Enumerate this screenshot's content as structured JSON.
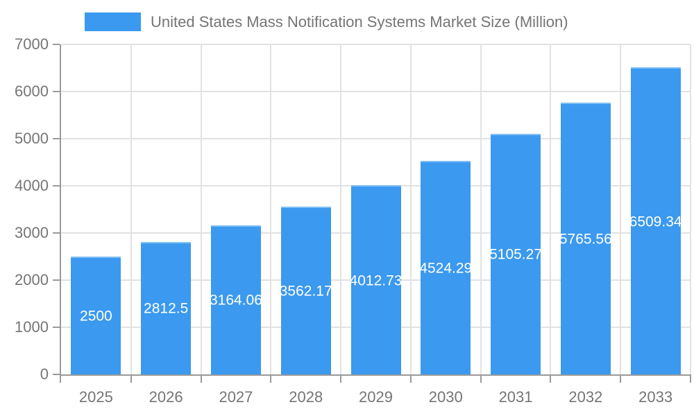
{
  "legend": {
    "label": "United States Mass Notification Systems Market Size (Million)",
    "swatch_color": "#3b99ef"
  },
  "chart_data": {
    "type": "bar",
    "title": "United States Mass Notification Systems Market Size (Million)",
    "categories": [
      "2025",
      "2026",
      "2027",
      "2028",
      "2029",
      "2030",
      "2031",
      "2032",
      "2033"
    ],
    "values": [
      2500,
      2812.5,
      3164.06,
      3562.17,
      4012.73,
      4524.29,
      5105.27,
      5765.56,
      6509.34
    ],
    "value_labels": [
      "2500",
      "2812.5",
      "3164.06",
      "3562.17",
      "4012.73",
      "4524.29",
      "5105.27",
      "5765.56",
      "6509.34"
    ],
    "xlabel": "",
    "ylabel": "",
    "ylim": [
      0,
      7000
    ],
    "yticks": [
      0,
      1000,
      2000,
      3000,
      4000,
      5000,
      6000,
      7000
    ],
    "grid": true,
    "legend_position": "top-left",
    "value_label_position": "inside-center",
    "colors": {
      "bar_fill": "#3b99ef",
      "bar_border": "#82c0f4",
      "grid_line": "#e2e2e2",
      "axis_line": "#9a9a9a",
      "tick_text": "#757575",
      "legend_text": "#757575",
      "value_text": "#ffffff",
      "background": "#ffffff"
    }
  }
}
